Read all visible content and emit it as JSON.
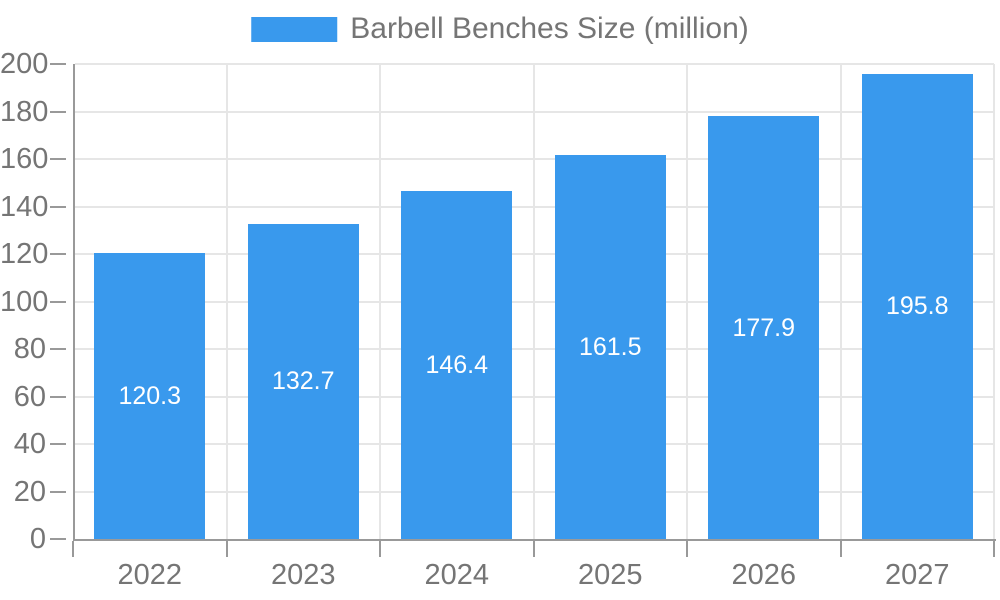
{
  "chart_data": {
    "type": "bar",
    "title": "",
    "categories": [
      "2022",
      "2023",
      "2024",
      "2025",
      "2026",
      "2027"
    ],
    "series": [
      {
        "name": "Barbell Benches Size (million)",
        "values": [
          120.3,
          132.7,
          146.4,
          161.5,
          177.9,
          195.8
        ]
      }
    ],
    "xlabel": "",
    "ylabel": "",
    "ylim": [
      0,
      200
    ],
    "yticks": [
      0,
      20,
      40,
      60,
      80,
      100,
      120,
      140,
      160,
      180,
      200
    ],
    "grid": true,
    "legend_position": "top-center",
    "value_labels_position": "inside-center"
  },
  "colors": {
    "bar": "#3999ED",
    "axis_line": "#999999",
    "grid_line": "#E6E6E6",
    "axis_text": "#757575",
    "value_label_text": "#FFFFFF",
    "background": "#FFFFFF"
  }
}
